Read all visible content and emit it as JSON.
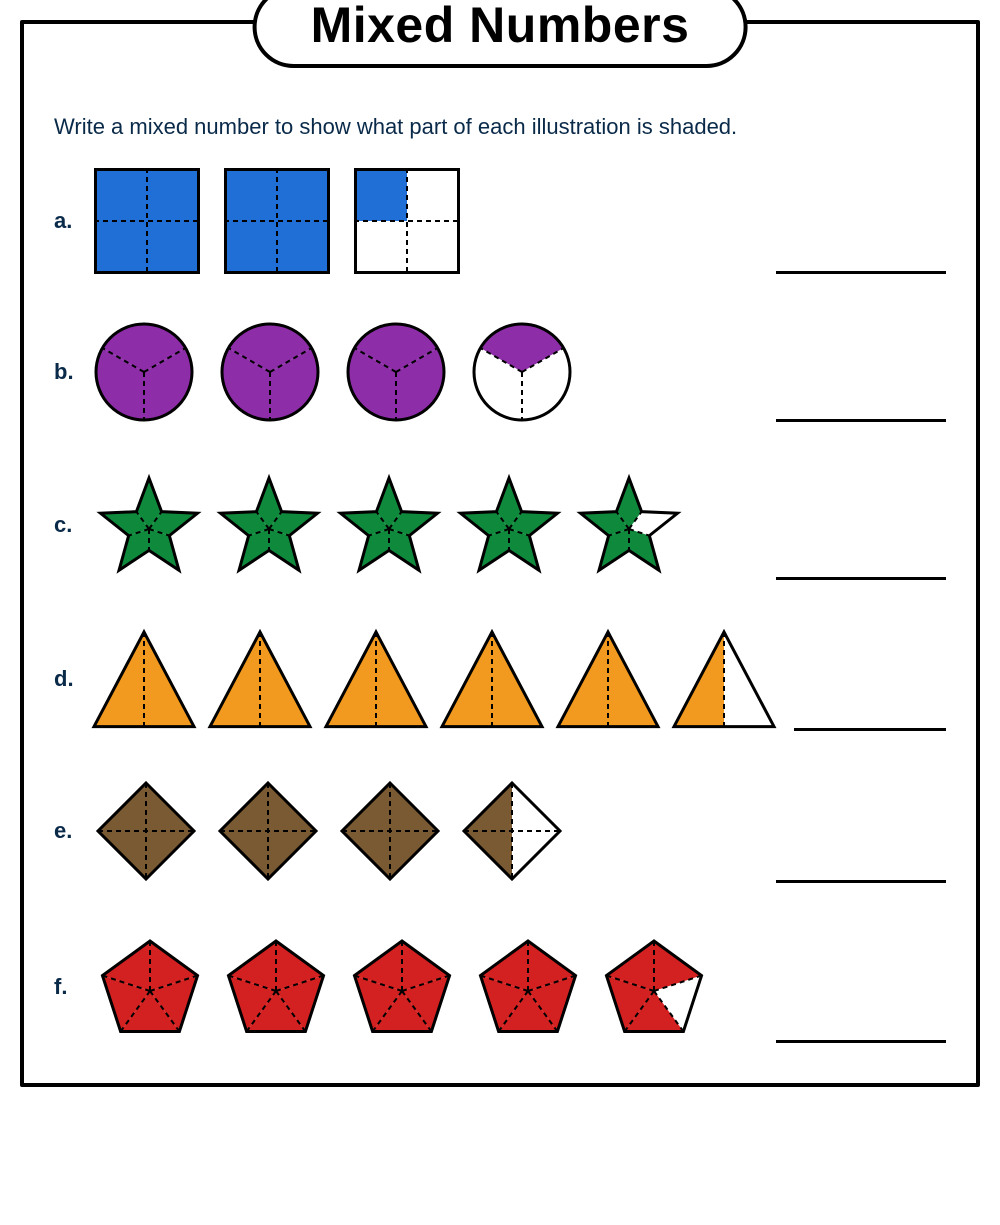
{
  "title": "Mixed Numbers",
  "instructions": "Write a mixed number to show what part of each illustration is shaded.",
  "colors": {
    "square_fill": "#1f6fd6",
    "circle_fill": "#8e2da8",
    "star_fill": "#0f8a3c",
    "triangle_fill": "#f29a1f",
    "diamond_fill": "#7a5a33",
    "pentagon_fill": "#d32020",
    "stroke": "#000000",
    "dash": "#000000",
    "background": "#ffffff"
  },
  "style": {
    "stroke_width": 3,
    "dash_pattern": "5,4",
    "title_fontsize": 50,
    "label_fontsize": 22,
    "instruction_fontsize": 22,
    "answer_line_width": 170
  },
  "rows": [
    {
      "label": "a.",
      "shape": "square",
      "parts": 4,
      "size": 106,
      "gap": 24,
      "items": [
        {
          "shaded": 4
        },
        {
          "shaded": 4
        },
        {
          "shaded": 1
        }
      ]
    },
    {
      "label": "b.",
      "shape": "circle",
      "parts": 3,
      "size": 100,
      "gap": 26,
      "items": [
        {
          "shaded": 3
        },
        {
          "shaded": 3
        },
        {
          "shaded": 3
        },
        {
          "shaded": 1
        }
      ]
    },
    {
      "label": "c.",
      "shape": "star",
      "parts": 5,
      "size": 110,
      "gap": 10,
      "items": [
        {
          "shaded": 5
        },
        {
          "shaded": 5
        },
        {
          "shaded": 5
        },
        {
          "shaded": 5
        },
        {
          "shaded": 4
        }
      ]
    },
    {
      "label": "d.",
      "shape": "triangle",
      "parts": 2,
      "size": 108,
      "gap": 8,
      "items": [
        {
          "shaded": 2
        },
        {
          "shaded": 2
        },
        {
          "shaded": 2
        },
        {
          "shaded": 2
        },
        {
          "shaded": 2
        },
        {
          "shaded": 1
        }
      ]
    },
    {
      "label": "e.",
      "shape": "diamond",
      "parts": 4,
      "size": 104,
      "gap": 18,
      "items": [
        {
          "shaded": 4
        },
        {
          "shaded": 4
        },
        {
          "shaded": 4
        },
        {
          "shaded": 2
        }
      ]
    },
    {
      "label": "f.",
      "shape": "pentagon",
      "parts": 5,
      "size": 112,
      "gap": 14,
      "items": [
        {
          "shaded": 5
        },
        {
          "shaded": 5
        },
        {
          "shaded": 5
        },
        {
          "shaded": 5
        },
        {
          "shaded": 4
        }
      ]
    }
  ]
}
